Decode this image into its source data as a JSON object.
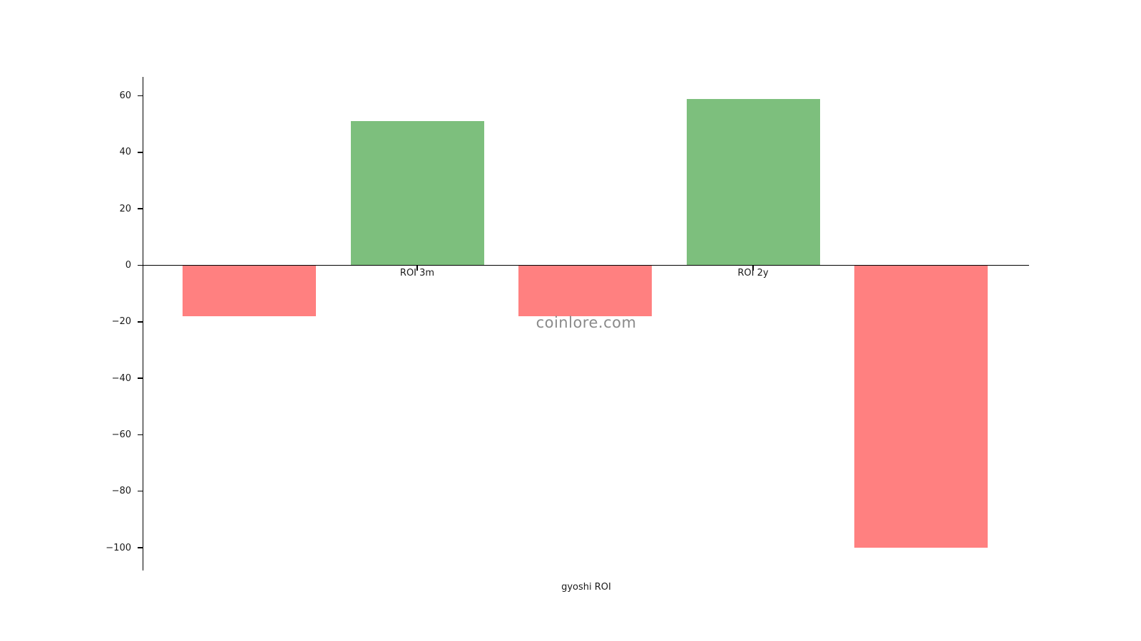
{
  "page": {
    "background": "#ffffff"
  },
  "chart_data": {
    "type": "bar",
    "title": "",
    "xlabel": "gyoshi ROI",
    "ylabel": "",
    "watermark": "coinlore.com",
    "bars": [
      {
        "label": "",
        "value": -18
      },
      {
        "label": "ROI 3m",
        "value": 51
      },
      {
        "label": "",
        "value": -18
      },
      {
        "label": "ROI 2y",
        "value": 59
      },
      {
        "label": "",
        "value": -100
      }
    ],
    "y_ticks": [
      {
        "label": "60",
        "value": 60
      },
      {
        "label": "40",
        "value": 40
      },
      {
        "label": "20",
        "value": 20
      },
      {
        "label": "0",
        "value": 0
      },
      {
        "label": "−20",
        "value": -20
      },
      {
        "label": "−40",
        "value": -40
      },
      {
        "label": "−60",
        "value": -60
      },
      {
        "label": "−80",
        "value": -80
      },
      {
        "label": "−100",
        "value": -100
      }
    ],
    "ylim": [
      -108,
      67
    ],
    "grid": false,
    "legend": null,
    "colors": {
      "positive": "#7dbf7d",
      "negative": "#ff8080",
      "axis": "#000000",
      "text": "#1a1a1a",
      "watermark": "#8a8a8a"
    }
  }
}
